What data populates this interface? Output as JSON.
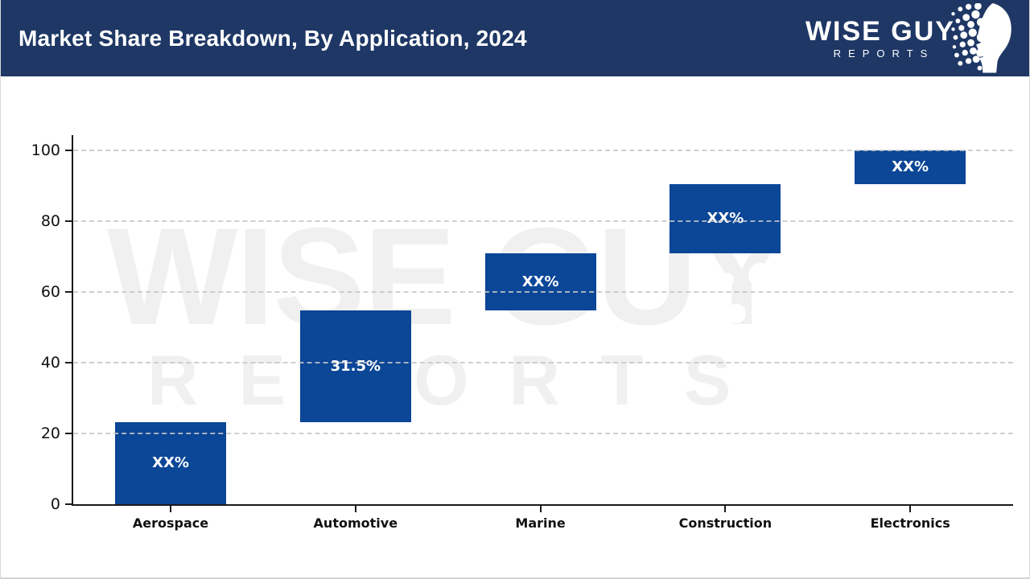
{
  "header": {
    "title": "Market Share Breakdown, By Application, 2024",
    "bg_color": "#1e3765",
    "logo": {
      "line1": "WISE GUY",
      "line2": "REPORTS"
    }
  },
  "watermark": {
    "line1": "WISE GUY",
    "line2": "REPORTS"
  },
  "chart_data": {
    "type": "bar",
    "subtype": "waterfall",
    "title": "Market Share Breakdown, By Application, 2024",
    "categories": [
      "Aerospace",
      "Automotive",
      "Marine",
      "Construction",
      "Electronics"
    ],
    "segments": [
      {
        "category": "Aerospace",
        "start": 0,
        "end": 23.2,
        "value_label": "XX%"
      },
      {
        "category": "Automotive",
        "start": 23.2,
        "end": 54.7,
        "value_label": "31.5%"
      },
      {
        "category": "Marine",
        "start": 54.7,
        "end": 71.0,
        "value_label": "XX%"
      },
      {
        "category": "Construction",
        "start": 71.0,
        "end": 90.5,
        "value_label": "XX%"
      },
      {
        "category": "Electronics",
        "start": 90.5,
        "end": 100.0,
        "value_label": "XX%"
      }
    ],
    "y_ticks": [
      0,
      20,
      40,
      60,
      80,
      100
    ],
    "ylim": [
      0,
      100
    ],
    "xlabel": "",
    "ylabel": "",
    "bar_color": "#0b4697",
    "grid": "dashed-horizontal",
    "legend": "none"
  }
}
